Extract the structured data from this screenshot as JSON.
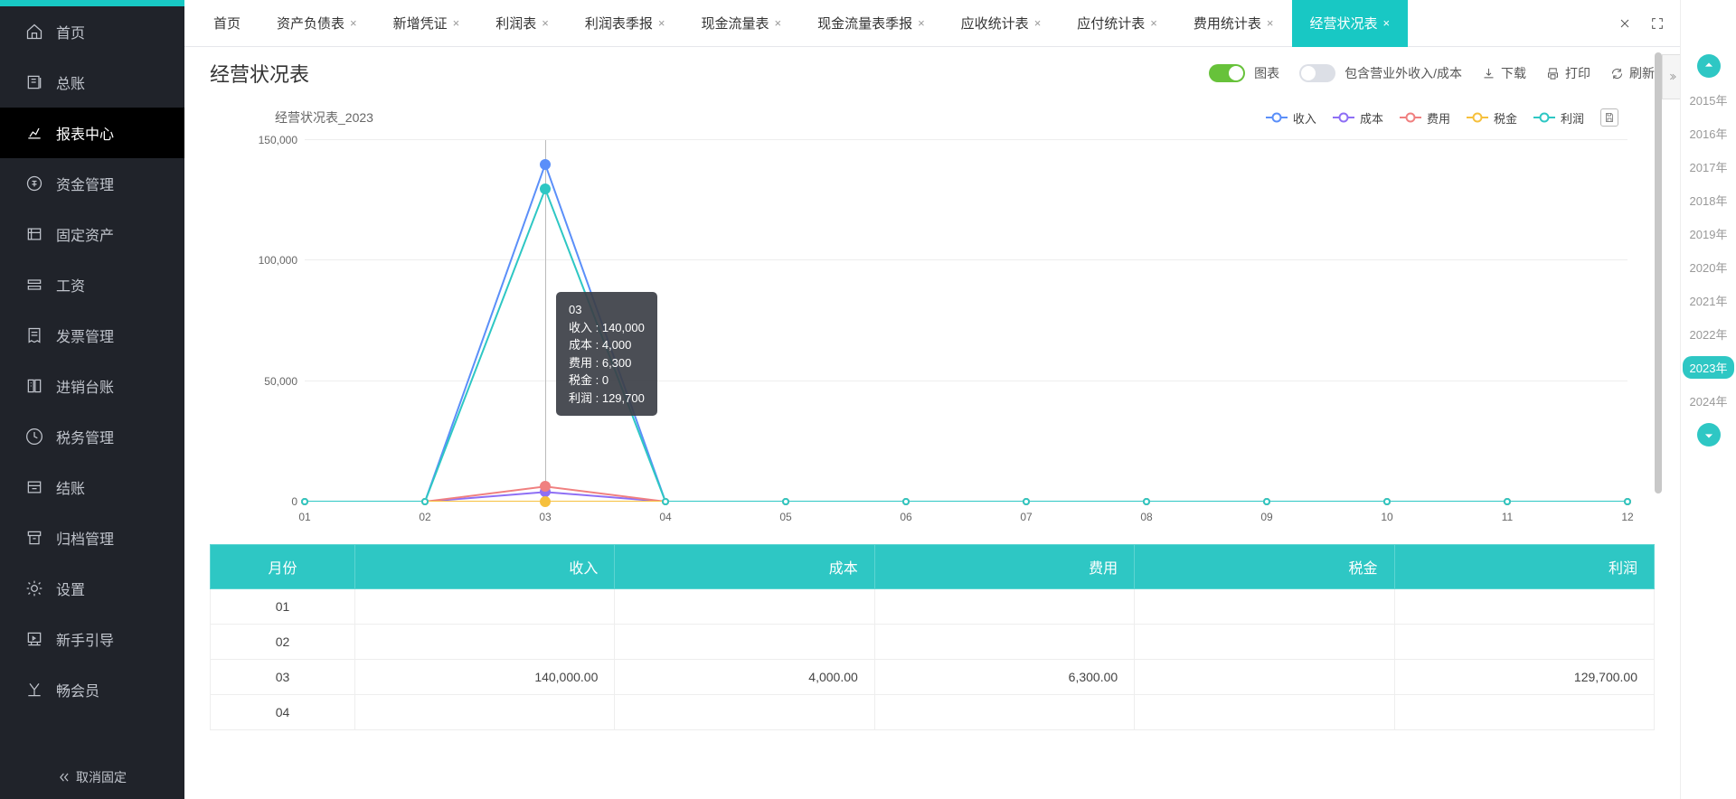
{
  "sidebar": {
    "items": [
      {
        "label": "首页",
        "icon": "home"
      },
      {
        "label": "总账",
        "icon": "ledger"
      },
      {
        "label": "报表中心",
        "icon": "chart"
      },
      {
        "label": "资金管理",
        "icon": "money"
      },
      {
        "label": "固定资产",
        "icon": "asset"
      },
      {
        "label": "工资",
        "icon": "salary"
      },
      {
        "label": "发票管理",
        "icon": "invoice"
      },
      {
        "label": "进销台账",
        "icon": "book"
      },
      {
        "label": "税务管理",
        "icon": "tax"
      },
      {
        "label": "结账",
        "icon": "settle"
      },
      {
        "label": "归档管理",
        "icon": "archive"
      },
      {
        "label": "设置",
        "icon": "gear"
      },
      {
        "label": "新手引导",
        "icon": "guide"
      },
      {
        "label": "畅会员",
        "icon": "vip"
      }
    ],
    "active_index": 2,
    "footer_label": "取消固定"
  },
  "tabs": {
    "items": [
      {
        "label": "首页",
        "closable": false
      },
      {
        "label": "资产负债表",
        "closable": true
      },
      {
        "label": "新增凭证",
        "closable": true
      },
      {
        "label": "利润表",
        "closable": true
      },
      {
        "label": "利润表季报",
        "closable": true
      },
      {
        "label": "现金流量表",
        "closable": true
      },
      {
        "label": "现金流量表季报",
        "closable": true
      },
      {
        "label": "应收统计表",
        "closable": true
      },
      {
        "label": "应付统计表",
        "closable": true
      },
      {
        "label": "费用统计表",
        "closable": true
      },
      {
        "label": "经营状况表",
        "closable": true
      }
    ],
    "active_index": 10
  },
  "toolbar": {
    "page_title": "经营状况表",
    "switch1_label": "图表",
    "switch1_on": true,
    "switch2_label": "包含营业外收入/成本",
    "switch2_on": false,
    "download_label": "下载",
    "print_label": "打印",
    "refresh_label": "刷新"
  },
  "chart": {
    "title": "经营状况表_2023",
    "type": "line",
    "x_labels": [
      "01",
      "02",
      "03",
      "04",
      "05",
      "06",
      "07",
      "08",
      "09",
      "10",
      "11",
      "12"
    ],
    "y_ticks": [
      0,
      50000,
      100000,
      150000
    ],
    "y_tick_labels": [
      "0",
      "50,000",
      "100,000",
      "150,000"
    ],
    "ylim": [
      0,
      150000
    ],
    "grid_color": "#eeeeee",
    "background_color": "#ffffff",
    "series": [
      {
        "name": "收入",
        "color": "#5b8ff9",
        "values": [
          0,
          0,
          140000,
          0,
          0,
          0,
          0,
          0,
          0,
          0,
          0,
          0
        ]
      },
      {
        "name": "成本",
        "color": "#8e6ff5",
        "values": [
          0,
          0,
          4000,
          0,
          0,
          0,
          0,
          0,
          0,
          0,
          0,
          0
        ]
      },
      {
        "name": "费用",
        "color": "#f08080",
        "values": [
          0,
          0,
          6300,
          0,
          0,
          0,
          0,
          0,
          0,
          0,
          0,
          0
        ]
      },
      {
        "name": "税金",
        "color": "#f6c03d",
        "values": [
          0,
          0,
          0,
          0,
          0,
          0,
          0,
          0,
          0,
          0,
          0,
          0
        ]
      },
      {
        "name": "利润",
        "color": "#2ec7c4",
        "values": [
          0,
          0,
          129700,
          0,
          0,
          0,
          0,
          0,
          0,
          0,
          0,
          0
        ]
      }
    ],
    "tooltip": {
      "x_index": 2,
      "title": "03",
      "rows": [
        "收入 : 140,000",
        "成本 : 4,000",
        "费用 : 6,300",
        "税金 : 0",
        "利润 : 129,700"
      ]
    }
  },
  "table": {
    "columns": [
      "月份",
      "收入",
      "成本",
      "费用",
      "税金",
      "利润"
    ],
    "rows": [
      [
        "01",
        "",
        "",
        "",
        "",
        ""
      ],
      [
        "02",
        "",
        "",
        "",
        "",
        ""
      ],
      [
        "03",
        "140,000.00",
        "4,000.00",
        "6,300.00",
        "",
        "129,700.00"
      ],
      [
        "04",
        "",
        "",
        "",
        "",
        ""
      ]
    ]
  },
  "year_rail": {
    "years": [
      "2015年",
      "2016年",
      "2017年",
      "2018年",
      "2019年",
      "2020年",
      "2021年",
      "2022年",
      "2023年",
      "2024年"
    ],
    "active_index": 8
  }
}
